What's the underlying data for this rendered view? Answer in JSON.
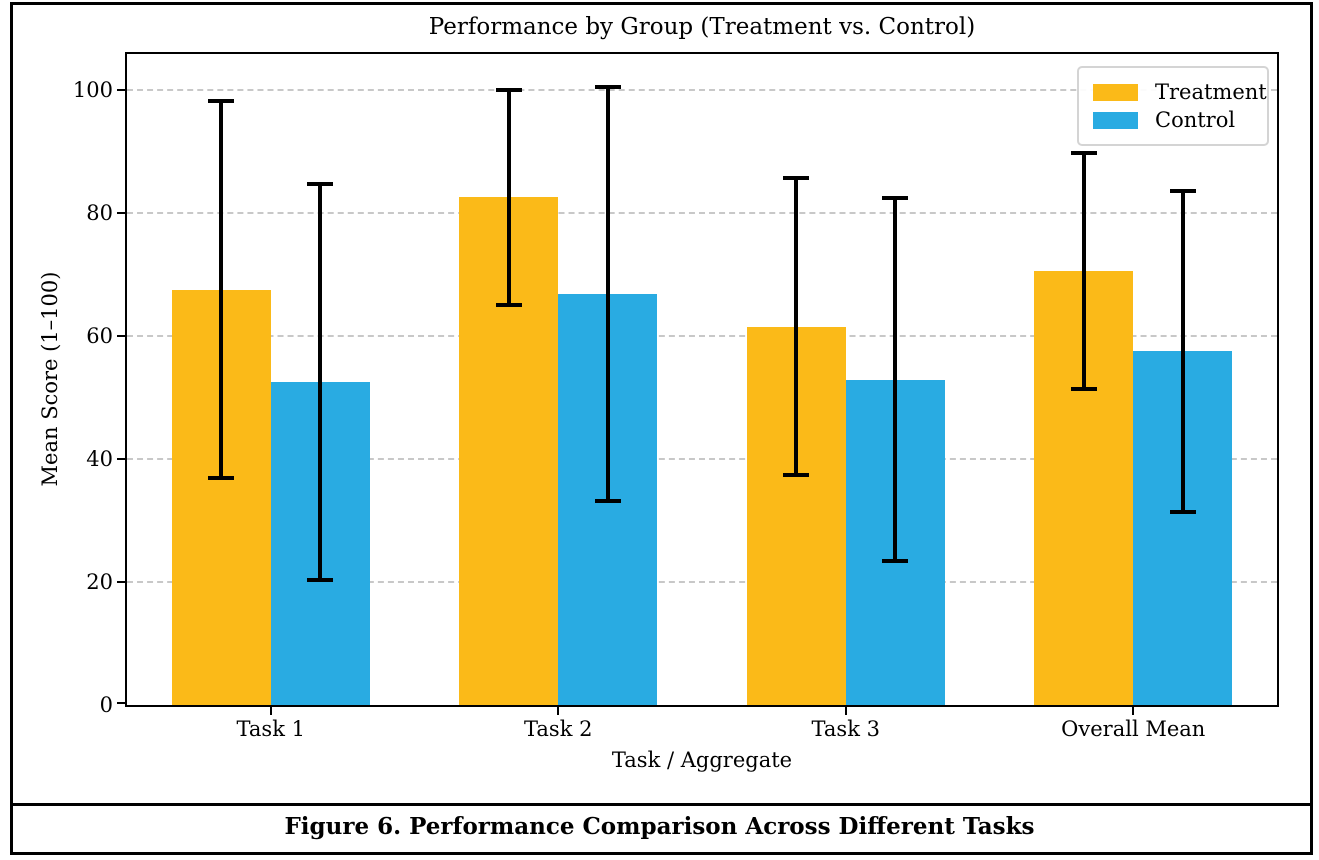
{
  "figure": {
    "caption": "Figure 6. Performance Comparison Across Different Tasks"
  },
  "chart_data": {
    "type": "bar",
    "title": "Performance by Group (Treatment vs. Control)",
    "xlabel": "Task / Aggregate",
    "ylabel": "Mean Score (1–100)",
    "categories": [
      "Task 1",
      "Task 2",
      "Task 3",
      "Overall Mean"
    ],
    "series": [
      {
        "name": "Treatment",
        "color": "#FBBA18",
        "values": [
          67.5,
          82.5,
          61.5,
          70.5
        ],
        "errors": [
          31.0,
          17.8,
          24.5,
          19.5
        ]
      },
      {
        "name": "Control",
        "color": "#29ABE2",
        "values": [
          52.5,
          66.8,
          52.9,
          57.5
        ],
        "errors": [
          32.5,
          34.0,
          29.8,
          26.4
        ]
      }
    ],
    "ylim": [
      0,
      105.8
    ],
    "yticks": [
      0,
      20,
      40,
      60,
      80,
      100
    ],
    "grid": "horizontal-dashed",
    "gridline_values": [
      20,
      40,
      60,
      80,
      100
    ],
    "error_bars": true,
    "legend_position": "upper-right"
  }
}
